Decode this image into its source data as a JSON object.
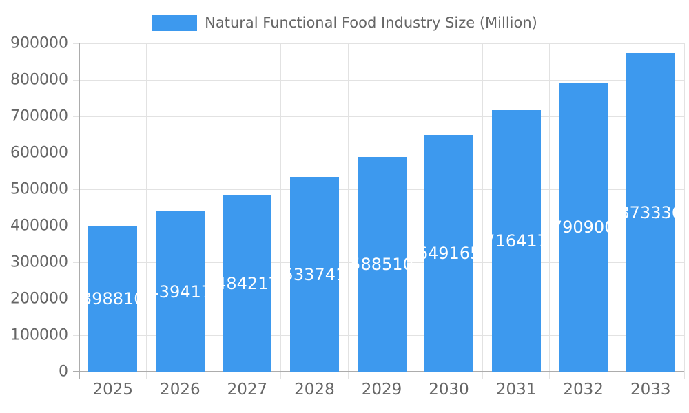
{
  "legend": {
    "label": "Natural Functional Food Industry Size (Million)"
  },
  "colors": {
    "bar": "#3D99EE",
    "grid": "#E2E2E2",
    "axis": "#ACACAC",
    "tick_label": "#666666",
    "legend_text": "#666666",
    "bar_label": "#FFFFFF",
    "bg": "#FFFFFF"
  },
  "chart_data": {
    "type": "bar",
    "title": "Natural Functional Food Industry Size (Million)",
    "series_name": "Natural Functional Food Industry Size (Million)",
    "categories": [
      "2025",
      "2026",
      "2027",
      "2028",
      "2029",
      "2030",
      "2031",
      "2032",
      "2033"
    ],
    "values": [
      398810,
      439417,
      484217,
      533741,
      588510,
      649165,
      716417,
      790900,
      873336
    ],
    "xlabel": "",
    "ylabel": "",
    "ylim": [
      0,
      900000
    ],
    "ytick_interval": 100000,
    "yticks": [
      "0",
      "100000",
      "200000",
      "300000",
      "400000",
      "500000",
      "600000",
      "700000",
      "800000",
      "900000"
    ],
    "grid": true,
    "legend_position": "top",
    "bar_value_labels": "inside-center-white"
  }
}
